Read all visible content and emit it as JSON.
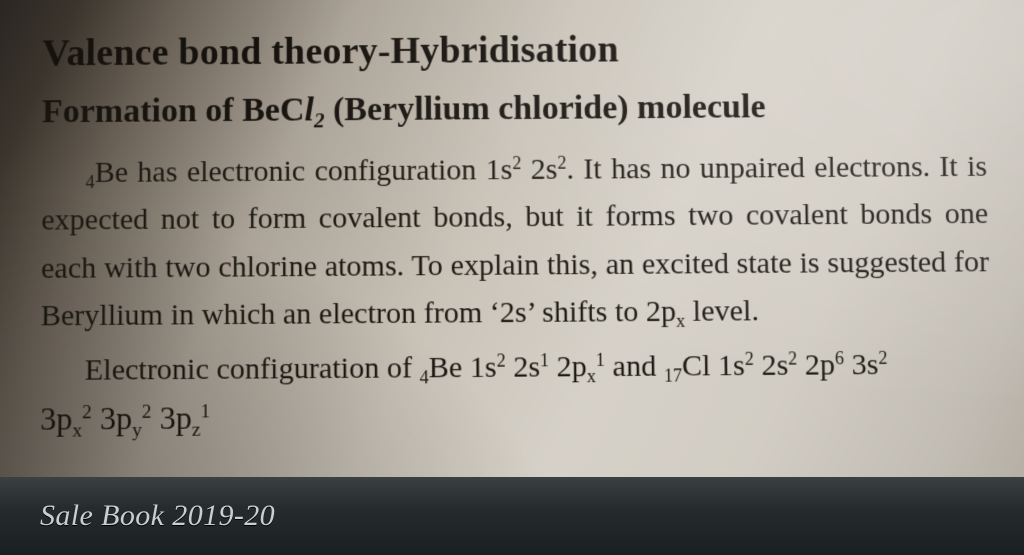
{
  "title": "Valence bond theory-Hybridisation",
  "subhead": {
    "lead": "Formation of BeC",
    "l": "l",
    "sub2": "2",
    "tail": " (Beryllium chloride) molecule"
  },
  "p1": {
    "pre4": "4",
    "t1": "Be has electronic configuration 1s",
    "s2a": "2",
    "t1b": " 2s",
    "s2b": "2",
    "t2": ". It has no unpaired electrons. It is expected not to form covalent bonds, but it forms two covalent bonds one each with two chlorine atoms. To explain this, an excited state is suggested for Beryllium in which an electron from ‘2s’ shifts to 2p",
    "px": "x",
    "t3": " level."
  },
  "p2": {
    "lead": "Electronic configuration of ",
    "be4": "4",
    "be": "Be  1s",
    "be_s1": "2",
    "be_2s": " 2s",
    "be_s2": "1",
    "be_2p": " 2p",
    "be_px": "x",
    "be_s3": "1",
    "and": " and ",
    "cl17": "17",
    "cl": "Cl  1s",
    "cl_s1": "2",
    "cl_2s": " 2s",
    "cl_s2": "2",
    "cl_2p": " 2p",
    "cl_s3": "6",
    "cl_3s": " 3s",
    "cl_s4": "2"
  },
  "orb": {
    "a": "3p",
    "ax": "x",
    "a2": "2",
    "b": " 3p",
    "by": "y",
    "b2": "2",
    "c": " 3p",
    "cz": "z",
    "c1": "1"
  },
  "footer": "Sale Book 2019-20"
}
